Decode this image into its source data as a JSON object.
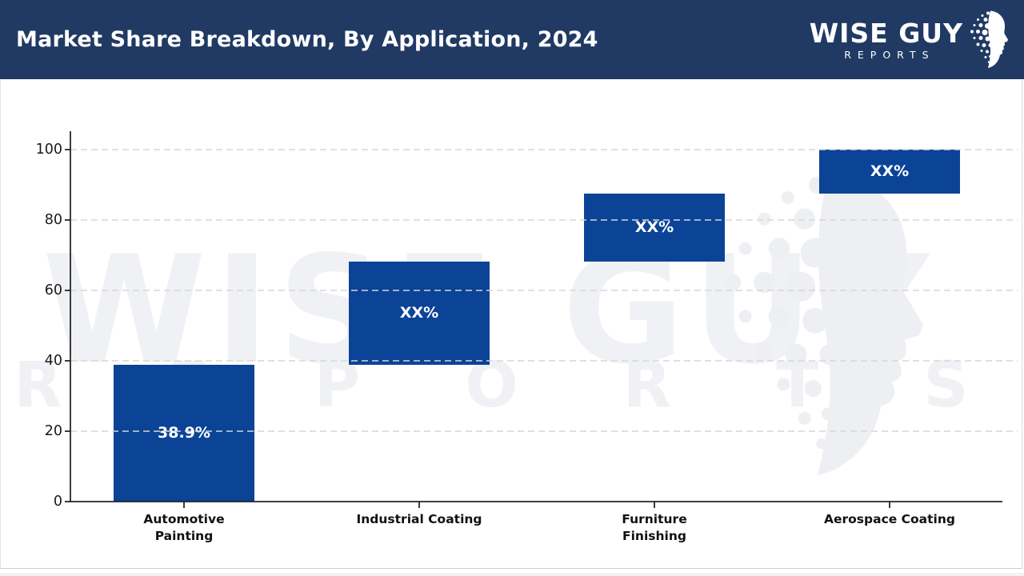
{
  "header": {
    "title": "Market Share Breakdown, By Application, 2024",
    "logo": {
      "name": "WISE GUY",
      "sub": "REPORTS"
    }
  },
  "watermark": {
    "line1": "WISE GUY",
    "line2": "R E P O R T S"
  },
  "chart_data": {
    "type": "bar",
    "subtype": "waterfall-floating-segments",
    "title": "Market Share Breakdown, By Application, 2024",
    "categories": [
      "Automotive Painting",
      "Industrial Coating",
      "Furniture Finishing",
      "Aerospace Coating"
    ],
    "category_label_lines": [
      [
        "Automotive",
        "Painting"
      ],
      [
        "Industrial Coating"
      ],
      [
        "Furniture",
        "Finishing"
      ],
      [
        "Aerospace Coating"
      ]
    ],
    "segments": [
      {
        "category": "Automotive Painting",
        "start": 0,
        "end": 38.9,
        "label": "38.9%"
      },
      {
        "category": "Industrial Coating",
        "start": 38.9,
        "end": 68.2,
        "label": "XX%"
      },
      {
        "category": "Furniture Finishing",
        "start": 68.2,
        "end": 87.6,
        "label": "XX%"
      },
      {
        "category": "Aerospace Coating",
        "start": 87.6,
        "end": 100,
        "label": "XX%"
      }
    ],
    "xlabel": "",
    "ylabel": "",
    "ylim": [
      0,
      100
    ],
    "yticks": [
      0,
      20,
      40,
      60,
      80,
      100
    ],
    "grid": {
      "horizontal": true,
      "style": "dashed",
      "drawn_over_bars": true
    },
    "legend": null,
    "colors": {
      "bar": "#0b4397",
      "bar_label": "#ffffff",
      "axis": "#262626",
      "tick_label": "#1a1a1a",
      "gridline": "#d7d7d7",
      "header_bg": "#213a64",
      "watermark": "#eff1f4"
    }
  }
}
